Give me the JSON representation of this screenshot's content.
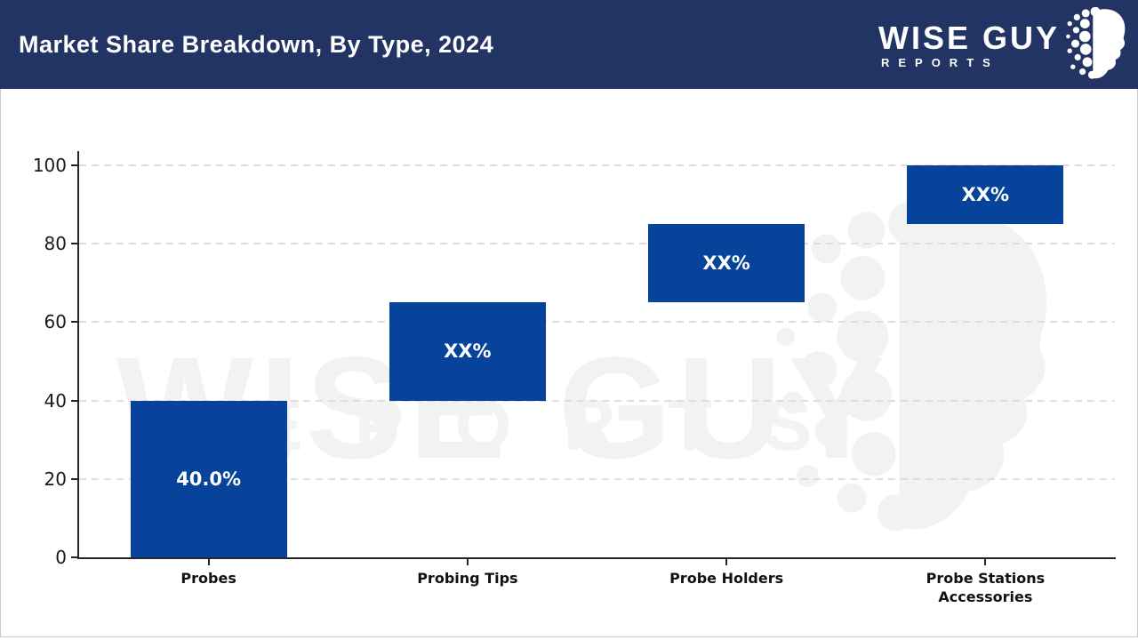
{
  "header": {
    "title": "Market Share Breakdown, By Type, 2024",
    "logo": {
      "line1": "WISE GUY",
      "line2": "REPORTS"
    }
  },
  "watermark": {
    "line1": "WISE GUY",
    "line2": "REPORTS"
  },
  "colors": {
    "header_bg": "#213463",
    "bar": "#07439b",
    "axis": "#262626",
    "gridline": "#dedede",
    "watermark": "#f2f2f2"
  },
  "chart_data": {
    "type": "bar",
    "subtype": "waterfall",
    "title": "Market Share Breakdown, By Type, 2024",
    "categories": [
      "Probes",
      "Probing Tips",
      "Probe Holders",
      "Probe Stations\nAccessories"
    ],
    "bars": [
      {
        "category": "Probes",
        "start": 0,
        "end": 40,
        "label": "40.0%"
      },
      {
        "category": "Probing Tips",
        "start": 40,
        "end": 65,
        "label": "XX%"
      },
      {
        "category": "Probe Holders",
        "start": 65,
        "end": 85,
        "label": "XX%"
      },
      {
        "category": "Probe Stations\nAccessories",
        "start": 85,
        "end": 100,
        "label": "XX%"
      }
    ],
    "yticks": [
      0,
      20,
      40,
      60,
      80,
      100
    ],
    "ylim": [
      0,
      107
    ],
    "xlabel": "",
    "ylabel": "",
    "grid": "horizontal-dashed",
    "legend": "none",
    "bar_color": "#07439b",
    "value_label_color": "#ffffff"
  }
}
